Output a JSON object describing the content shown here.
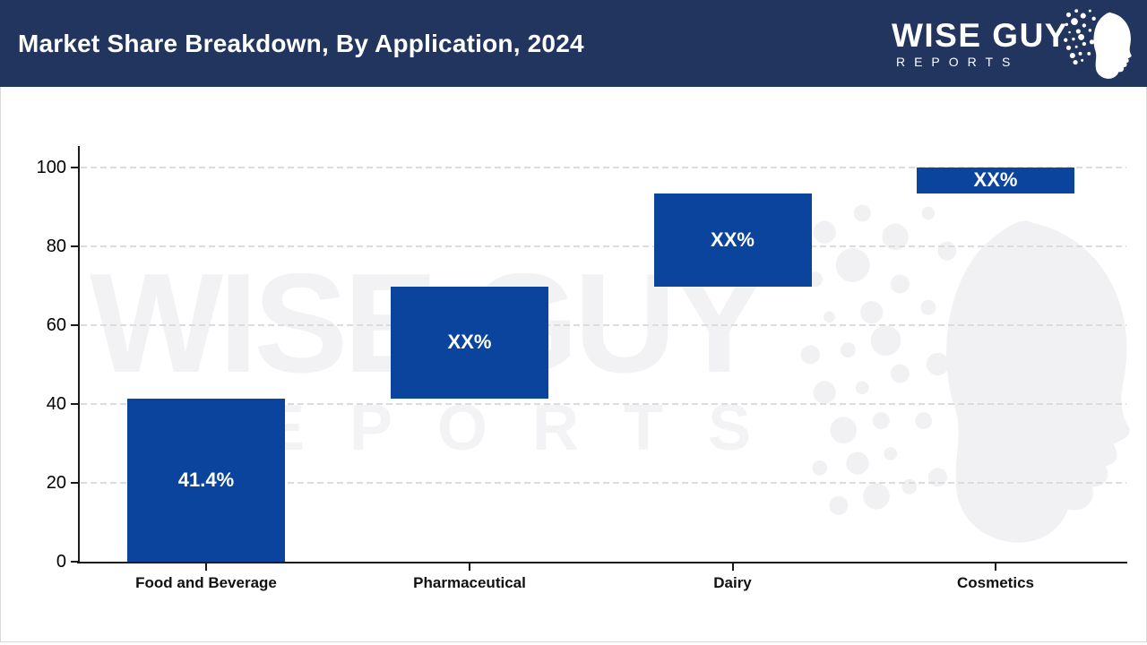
{
  "header": {
    "title": "Market Share Breakdown, By Application, 2024",
    "logo": {
      "name_line": "WISE GUY",
      "sub_line": "REPORTS"
    }
  },
  "watermark": {
    "name_line": "WISE GUY",
    "sub_line": "REPORTS"
  },
  "chart_data": {
    "type": "bar",
    "subtype": "waterfall",
    "title": "Market Share Breakdown, By Application, 2024",
    "categories": [
      "Food and Beverage",
      "Pharmaceutical",
      "Dairy",
      "Cosmetics"
    ],
    "series": [
      {
        "name": "Market share (%)",
        "segments": [
          {
            "category": "Food and Beverage",
            "start": 0,
            "end": 41.4,
            "label": "41.4%"
          },
          {
            "category": "Pharmaceutical",
            "start": 41.4,
            "end": 69.8,
            "label": "XX%"
          },
          {
            "category": "Dairy",
            "start": 69.8,
            "end": 93.5,
            "label": "XX%"
          },
          {
            "category": "Cosmetics",
            "start": 93.5,
            "end": 100,
            "label": "XX%"
          }
        ]
      }
    ],
    "xlabel": "",
    "ylabel": "",
    "yticks": [
      0,
      20,
      40,
      60,
      80,
      100
    ],
    "ylim": [
      0,
      105
    ],
    "grid": "horizontal-dashed",
    "legend": "none",
    "colors": {
      "bar": "#0b449c",
      "bar_label": "#ffffff",
      "axis": "#1a1a1a",
      "gridline": "#dcdcdc",
      "header_bg": "#21355e",
      "watermark": "#f2f2f4"
    }
  }
}
